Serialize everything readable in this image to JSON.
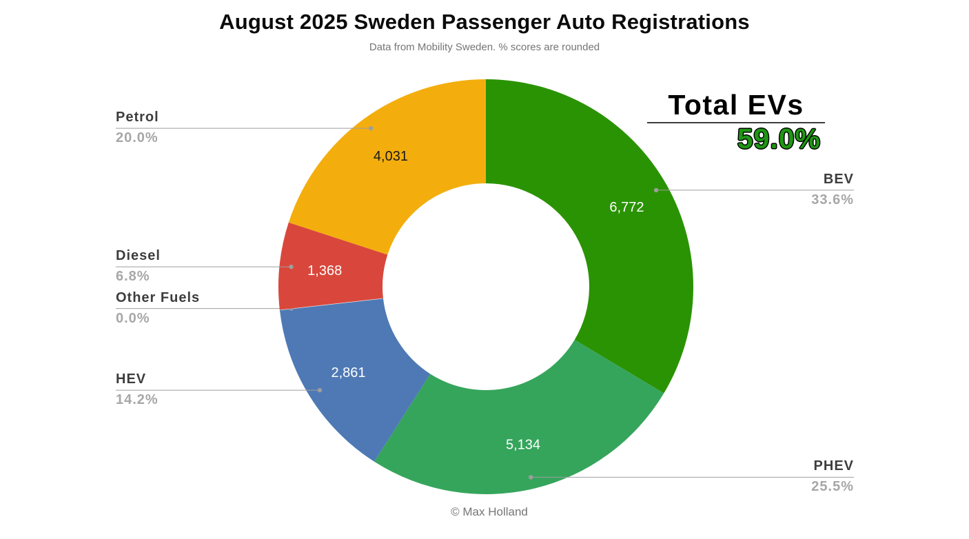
{
  "page": {
    "title": "August 2025 Sweden Passenger Auto Registrations",
    "subtitle": "Data from Mobility Sweden. % scores are rounded",
    "footer": "© Max Holland"
  },
  "total_evs": {
    "label": "Total EVs",
    "value": "59.0%",
    "value_color": "#1f9614"
  },
  "palette": {
    "leader_line": "#9e9e9e",
    "leader_dot": "#9e9e9e",
    "label_name_text": "#3d3d3d",
    "label_pct_text": "#a7a7a7",
    "title_text": "#0b0b0b",
    "subtitle_text": "#757575"
  },
  "chart_data": {
    "type": "pie",
    "variant": "donut",
    "title": "August 2025 Sweden Passenger Auto Registrations",
    "subtitle": "Data from Mobility Sweden. % scores are rounded",
    "legend_position": "none",
    "start_angle_deg": 0,
    "direction": "clockwise",
    "slices": [
      {
        "label": "BEV",
        "value": 6772,
        "value_display": "6,772",
        "pct": "33.6%",
        "color": "#2a9303",
        "value_text_color": "#ffffff"
      },
      {
        "label": "PHEV",
        "value": 5134,
        "value_display": "5,134",
        "pct": "25.5%",
        "color": "#35a55c",
        "value_text_color": "#ffffff"
      },
      {
        "label": "HEV",
        "value": 2861,
        "value_display": "2,861",
        "pct": "14.2%",
        "color": "#4e79b5",
        "value_text_color": "#ffffff"
      },
      {
        "label": "Other Fuels",
        "value": 0,
        "value_display": "",
        "pct": "0.0%",
        "color": "#e3e3e3",
        "value_text_color": "#ffffff"
      },
      {
        "label": "Diesel",
        "value": 1368,
        "value_display": "1,368",
        "pct": "6.8%",
        "color": "#d9473c",
        "value_text_color": "#ffffff"
      },
      {
        "label": "Petrol",
        "value": 4031,
        "value_display": "4,031",
        "pct": "20.0%",
        "color": "#f3ae0e",
        "value_text_color": "#1a1a1a"
      }
    ]
  }
}
